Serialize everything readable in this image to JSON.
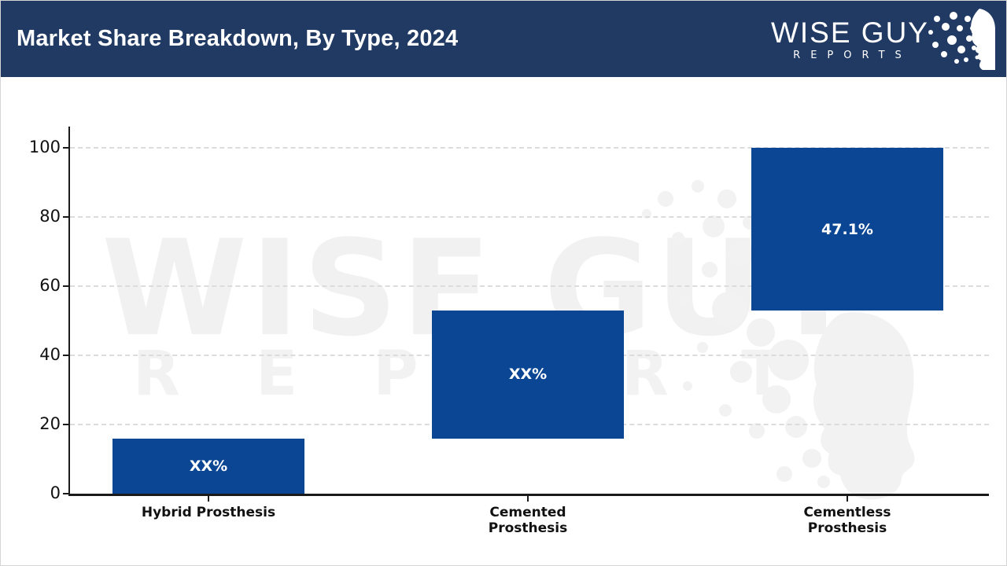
{
  "header": {
    "title": "Market Share Breakdown, By Type, 2024",
    "logo": {
      "line1": "WISE GUY",
      "line2": "REPORTS",
      "head_icon": "dotted-head-profile"
    }
  },
  "watermark": {
    "line1": "WISE GUY",
    "line2": "REPORTS",
    "head_icon": "dotted-head-profile"
  },
  "colors": {
    "header_bg": "#213a64",
    "bar": "#0a4694",
    "bar_label": "#ffffff",
    "grid": "#dcdcdc",
    "axis": "#1a1a1a",
    "watermark": "#f1f1f1",
    "page_border": "#d5d5d5"
  },
  "chart_data": {
    "type": "bar",
    "subtype": "floating-segment (waterfall-style market share)",
    "title": "Market Share Breakdown, By Type, 2024",
    "unit": "%",
    "categories": [
      "Hybrid Prosthesis",
      "Cemented Prosthesis",
      "Cementless Prosthesis"
    ],
    "bars": [
      {
        "category": "Hybrid Prosthesis",
        "category_lines": [
          "Hybrid Prosthesis"
        ],
        "start": 0,
        "end": 16,
        "label": "XX%"
      },
      {
        "category": "Cemented Prosthesis",
        "category_lines": [
          "Cemented",
          "Prosthesis"
        ],
        "start": 16,
        "end": 52.9,
        "label": "XX%"
      },
      {
        "category": "Cementless Prosthesis",
        "category_lines": [
          "Cementless",
          "Prosthesis"
        ],
        "start": 52.9,
        "end": 100,
        "label": "47.1%"
      }
    ],
    "yticks": [
      0,
      20,
      40,
      60,
      80,
      100
    ],
    "ylim": [
      0,
      105
    ],
    "xlabel": "",
    "ylabel": "",
    "grid": "horizontal-dashed",
    "legend": "none",
    "bar_color": "#0a4694",
    "label_color": "#ffffff"
  }
}
